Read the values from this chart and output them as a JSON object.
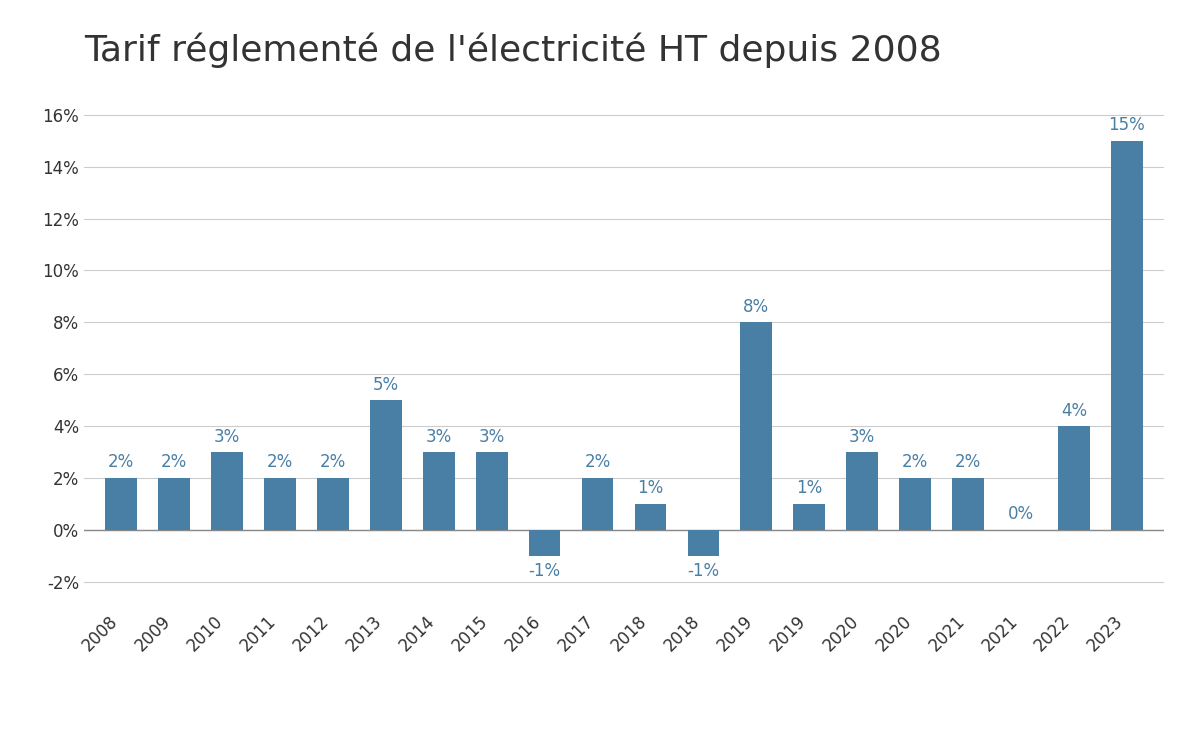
{
  "title": "Tarif réglementé de l'électricité HT depuis 2008",
  "x_labels": [
    "2008",
    "2009",
    "2010",
    "2011",
    "2012",
    "2013",
    "2014",
    "2015",
    "2016",
    "2017",
    "2018",
    "2018",
    "2019",
    "2019",
    "2020",
    "2020",
    "2021",
    "2021",
    "2022",
    "2023"
  ],
  "values": [
    2,
    2,
    3,
    2,
    2,
    5,
    3,
    3,
    -1,
    2,
    1,
    -1,
    8,
    1,
    3,
    2,
    2,
    0,
    4,
    15
  ],
  "bar_color": "#4a7fa5",
  "label_color": "#4a7fa5",
  "background_color": "#ffffff",
  "title_color": "#333333",
  "axis_label_color": "#333333",
  "grid_color": "#cccccc",
  "ylim": [
    -3,
    17
  ],
  "yticks": [
    -2,
    0,
    2,
    4,
    6,
    8,
    10,
    12,
    14,
    16
  ],
  "title_fontsize": 26,
  "tick_fontsize": 12,
  "label_fontsize": 12
}
